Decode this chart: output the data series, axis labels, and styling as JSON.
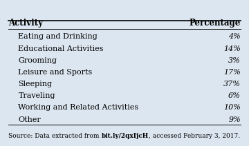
{
  "headers": [
    "Activity",
    "Percentage"
  ],
  "rows": [
    [
      "Eating and Drinking",
      "4%"
    ],
    [
      "Educational Activities",
      "14%"
    ],
    [
      "Grooming",
      "3%"
    ],
    [
      "Leisure and Sports",
      "17%"
    ],
    [
      "Sleeping",
      "37%"
    ],
    [
      "Traveling",
      "6%"
    ],
    [
      "Working and Related Activities",
      "10%"
    ],
    [
      "Other",
      "9%"
    ]
  ],
  "source_text": "Source: Data extracted from ",
  "source_bold": "bit.ly/2qxIjcH",
  "source_rest": ", accessed February 3, 2017.",
  "background_color": "#dce6f0",
  "header_fontsize": 8.5,
  "row_fontsize": 8.0,
  "source_fontsize": 6.5
}
